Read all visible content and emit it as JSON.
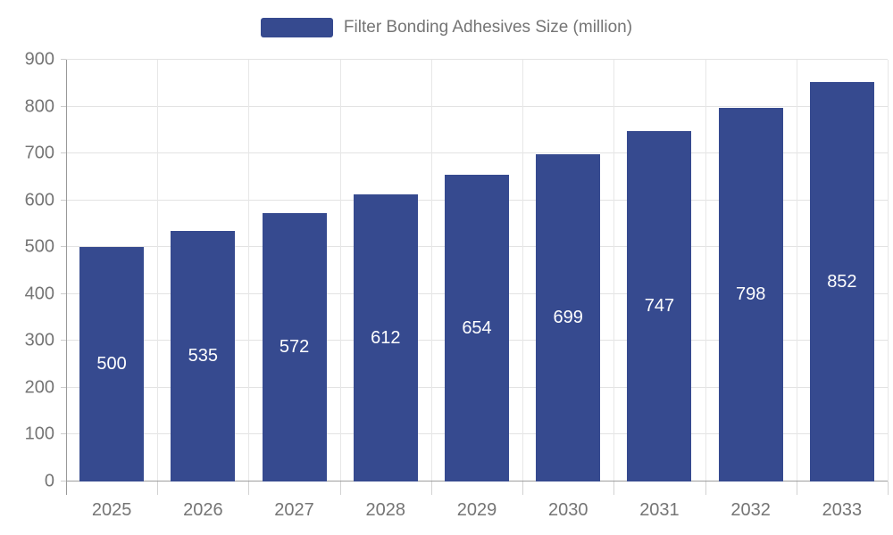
{
  "legend": {
    "label": "Filter Bonding Adhesives Size (million)"
  },
  "chart_data": {
    "type": "bar",
    "categories": [
      "2025",
      "2026",
      "2027",
      "2028",
      "2029",
      "2030",
      "2031",
      "2032",
      "2033"
    ],
    "series": [
      {
        "name": "Filter Bonding Adhesives Size (million)",
        "values": [
          500,
          535,
          572,
          612,
          654,
          699,
          747,
          798,
          852
        ]
      }
    ],
    "title": "",
    "xlabel": "",
    "ylabel": "",
    "ylim": [
      0,
      900
    ],
    "ytick_step": 100,
    "grid": "on",
    "legend_position": "top-center",
    "data_labels": "inside-center-white",
    "colors": {
      "bar": "#364A8F",
      "bar_label": "#ffffff",
      "axis_text": "#757575",
      "legend_text": "#757575",
      "gridline": "#e3e3e3",
      "axis_line": "#999999"
    }
  }
}
